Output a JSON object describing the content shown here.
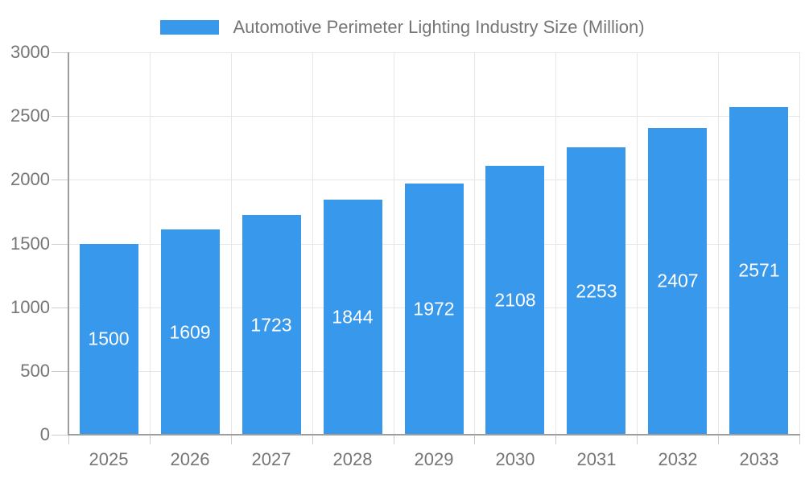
{
  "legend": {
    "label": "Automotive Perimeter Lighting Industry Size (Million)"
  },
  "colors": {
    "bar": "#3898ec",
    "axis_text": "#757575",
    "value_label": "#ffffff",
    "gridline": "#e6e6e6",
    "axis_line": "#9e9e9e"
  },
  "chart_data": {
    "type": "bar",
    "title": "Automotive Perimeter Lighting Industry Size (Million)",
    "categories": [
      "2025",
      "2026",
      "2027",
      "2028",
      "2029",
      "2030",
      "2031",
      "2032",
      "2033"
    ],
    "values": [
      1500,
      1609,
      1723,
      1844,
      1972,
      2108,
      2253,
      2407,
      2571
    ],
    "value_labels": [
      "1500",
      "1609",
      "1723",
      "1844",
      "1972",
      "2108",
      "2253",
      "2407",
      "2571"
    ],
    "xlabel": "",
    "ylabel": "",
    "ylim": [
      0,
      3000
    ],
    "yticks": [
      0,
      500,
      1000,
      1500,
      2000,
      2500,
      3000
    ],
    "grid": true,
    "legend_position": "top",
    "bar_color": "#3898ec",
    "value_label_color": "#ffffff"
  }
}
